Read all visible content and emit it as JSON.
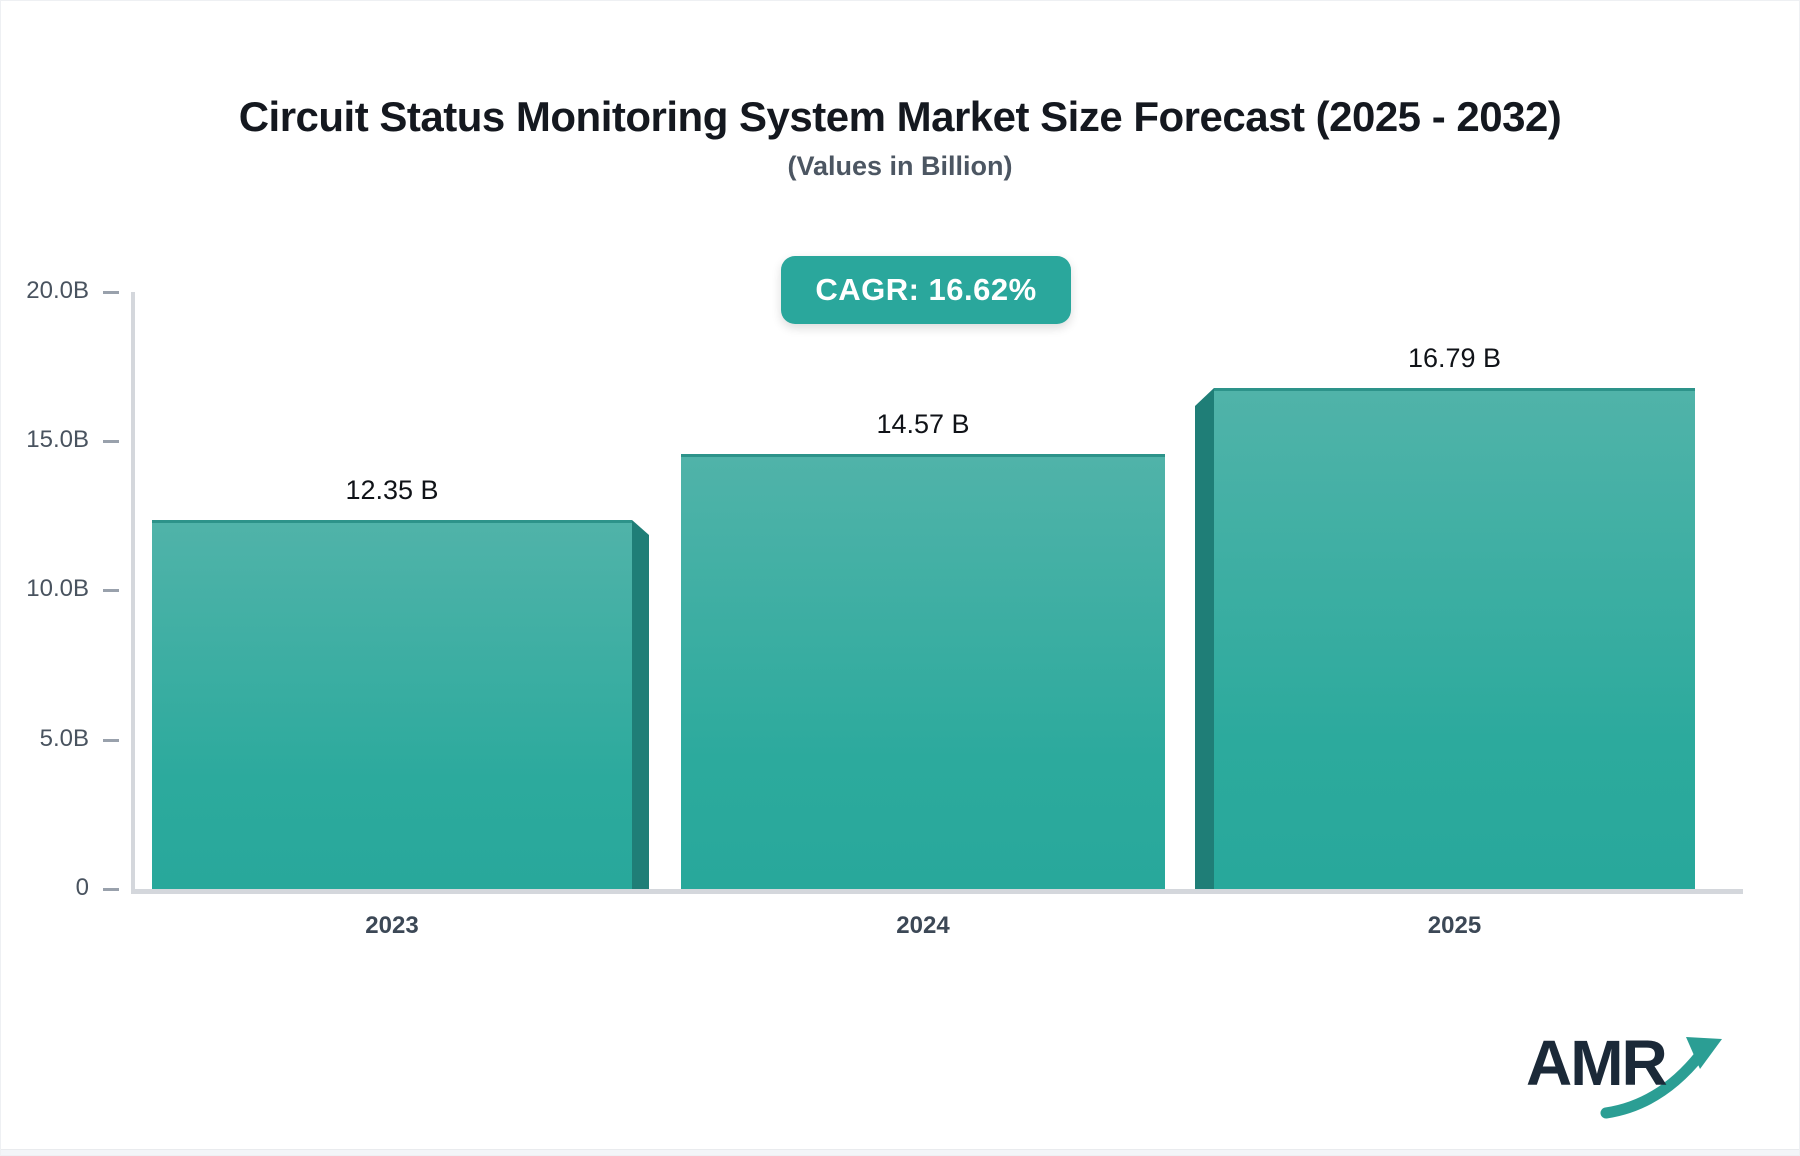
{
  "header": {
    "title": "Circuit Status Monitoring System Market Size Forecast (2025 - 2032)",
    "subtitle": "(Values in Billion)"
  },
  "badge": {
    "label": "CAGR: 16.62%"
  },
  "chart_data": {
    "type": "bar",
    "title": "Circuit Status Monitoring System Market Size Forecast (2025 - 2032)",
    "subtitle": "(Values in Billion)",
    "cagr_label": "CAGR: 16.62%",
    "categories": [
      "2023",
      "2024",
      "2025"
    ],
    "values": [
      12.35,
      14.57,
      16.79
    ],
    "value_labels": [
      "12.35 B",
      "14.57 B",
      "16.79 B"
    ],
    "unit": "Billion",
    "y_ticks": [
      "20.0B",
      "15.0B",
      "10.0B",
      "5.0B",
      "0"
    ],
    "ylim": [
      0,
      20
    ],
    "grid": false,
    "legend": false,
    "colors": {
      "bar_top": "#50b3a9",
      "bar_bottom": "#28a89b",
      "bar_side": "#1f7e77",
      "accent": "#2aa79c",
      "axis_line": "#d4d7dc"
    }
  },
  "logo": {
    "text": "AMR"
  }
}
